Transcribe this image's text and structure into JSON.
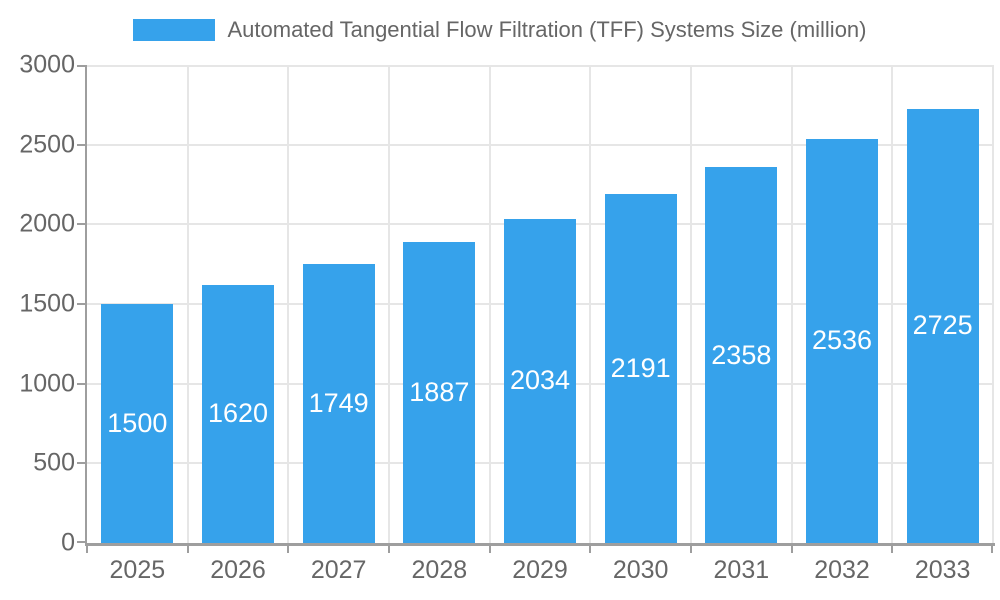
{
  "chart_data": {
    "type": "bar",
    "title": "Automated Tangential Flow Filtration (TFF) Systems Size (million)",
    "legend": {
      "label": "Automated Tangential Flow Filtration (TFF) Systems Size (million)",
      "position": "top"
    },
    "categories": [
      "2025",
      "2026",
      "2027",
      "2028",
      "2029",
      "2030",
      "2031",
      "2032",
      "2033"
    ],
    "values": [
      1500,
      1620,
      1749,
      1887,
      2034,
      2191,
      2358,
      2536,
      2725
    ],
    "xlabel": "",
    "ylabel": "",
    "ylim": [
      0,
      3000
    ],
    "yticks": [
      0,
      500,
      1000,
      1500,
      2000,
      2500,
      3000
    ],
    "grid": true,
    "bar_value_labels_visible": true,
    "colors": {
      "bar": "#36a2eb",
      "bar_value_label": "#ffffff",
      "grid": "#e6e6e6",
      "axis": "#9e9e9e",
      "tick_text": "#666666",
      "legend_text": "#666666",
      "background": "#ffffff"
    }
  }
}
